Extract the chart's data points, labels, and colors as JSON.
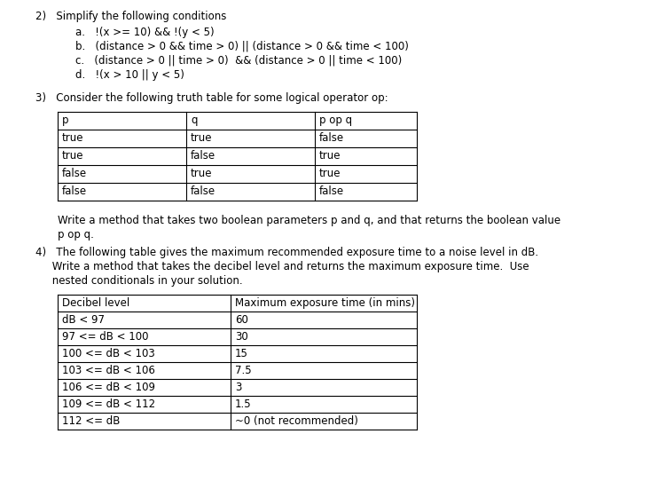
{
  "background_color": "#ffffff",
  "section2_title": "2)   Simplify the following conditions",
  "section2_items": [
    "a.   !(x >= 10) && !(y < 5)",
    "b.   (distance > 0 && time > 0) || (distance > 0 && time < 100)",
    "c.   (distance > 0 || time > 0)  && (distance > 0 || time < 100)",
    "d.   !(x > 10 || y < 5)"
  ],
  "section3_title": "3)   Consider the following truth table for some logical operator op:",
  "truth_table_headers": [
    "p",
    "q",
    "p op q"
  ],
  "truth_table_rows": [
    [
      "true",
      "true",
      "false"
    ],
    [
      "true",
      "false",
      "true"
    ],
    [
      "false",
      "true",
      "true"
    ],
    [
      "false",
      "false",
      "false"
    ]
  ],
  "section3_text1": "Write a method that takes two boolean parameters p and q, and that returns the boolean value",
  "section3_text2": "p op q.",
  "section4_title": "4)   The following table gives the maximum recommended exposure time to a noise level in dB.",
  "section4_text1": "     Write a method that takes the decibel level and returns the maximum exposure time.  Use",
  "section4_text2": "     nested conditionals in your solution.",
  "db_table_headers": [
    "Decibel level",
    "Maximum exposure time (in mins)"
  ],
  "db_table_rows": [
    [
      "dB < 97",
      "60"
    ],
    [
      "97 <= dB < 100",
      "30"
    ],
    [
      "100 <= dB < 103",
      "15"
    ],
    [
      "103 <= dB < 106",
      "7.5"
    ],
    [
      "106 <= dB < 109",
      "3"
    ],
    [
      "109 <= dB < 112",
      "1.5"
    ],
    [
      "112 <= dB",
      "~0 (not recommended)"
    ]
  ],
  "font_size": 8.5,
  "font_family": "DejaVu Sans"
}
